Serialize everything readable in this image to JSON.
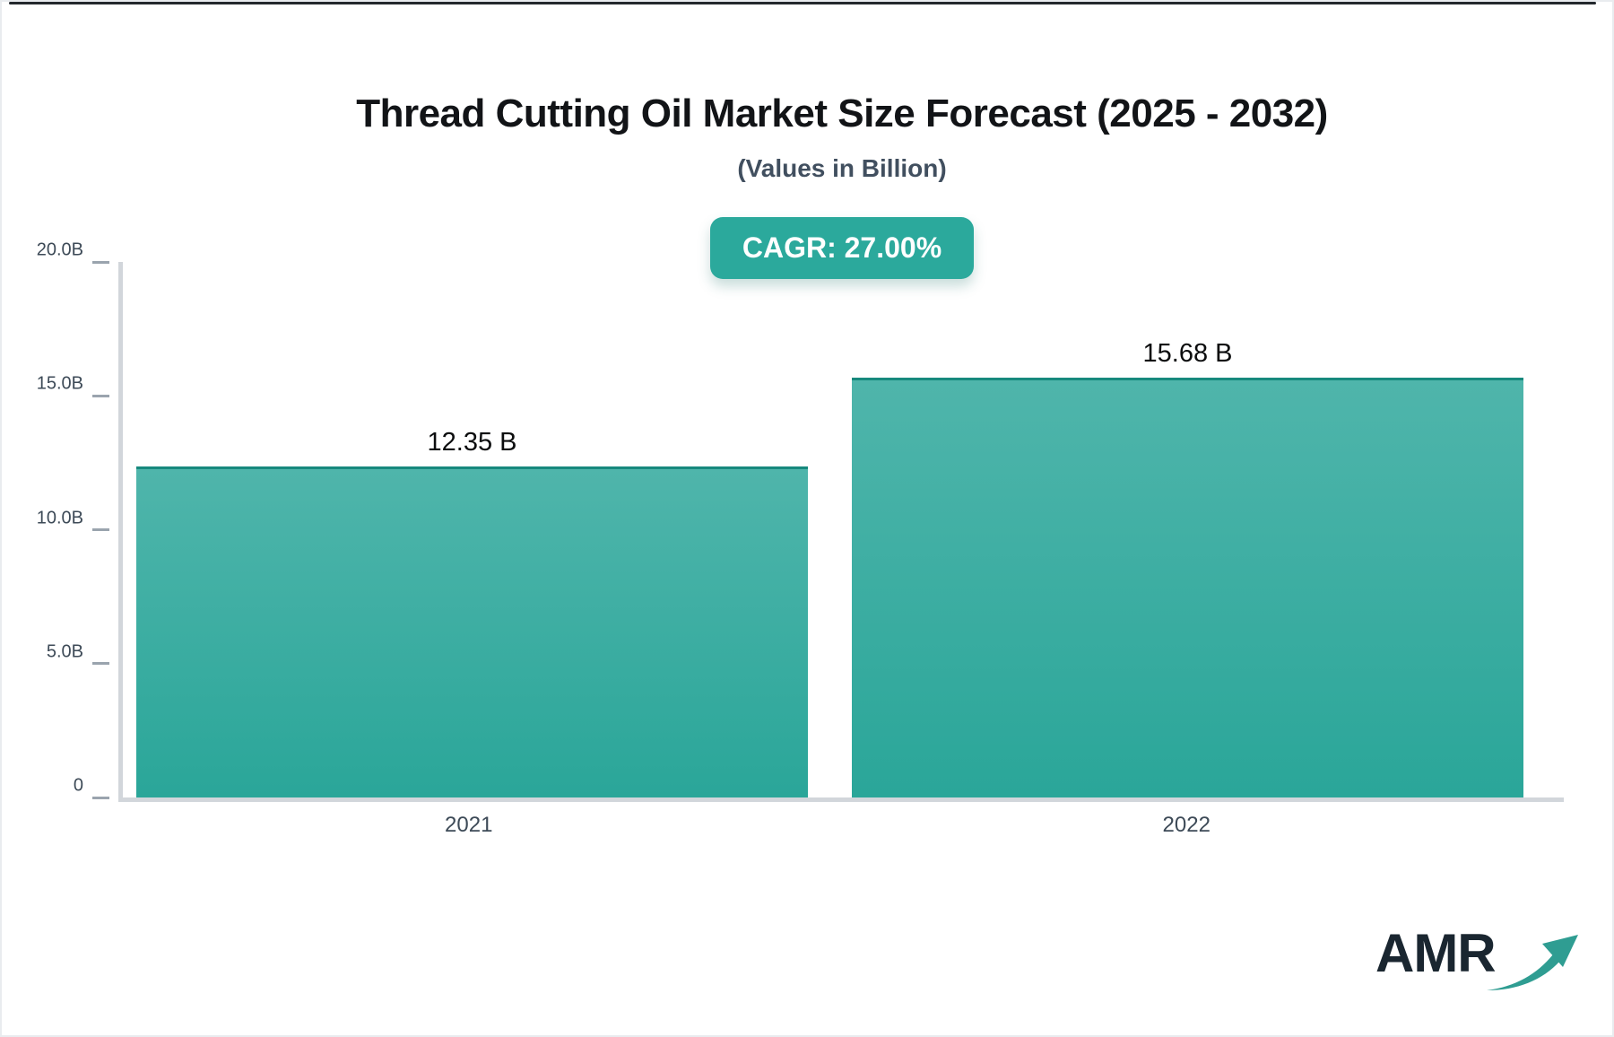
{
  "title": "Thread Cutting Oil Market Size Forecast (2025 - 2032)",
  "subtitle": "(Values in Billion)",
  "badge": {
    "label": "CAGR: 27.00%"
  },
  "logo": {
    "text": "AMR"
  },
  "colors": {
    "badge_bg": "#2ba99c",
    "bar_gradient_top": "#4fb5ab",
    "bar_gradient_bottom": "#2aa699",
    "bar_top_border": "#17897d",
    "axis_line": "#d2d6db",
    "tick": "#9aa4ae",
    "tick_label": "#3d4a57",
    "logo_arrow": "#2f9d92"
  },
  "chart_data": {
    "type": "bar",
    "categories": [
      "2021",
      "2022"
    ],
    "values": [
      12.35,
      15.68
    ],
    "value_labels": [
      "12.35 B",
      "15.68 B"
    ],
    "title": "Thread Cutting Oil Market Size Forecast (2025 - 2032)",
    "subtitle": "(Values in Billion)",
    "annotation": "CAGR: 27.00%",
    "xlabel": "",
    "ylabel": "",
    "ylim": [
      0,
      20
    ],
    "yticks": [
      {
        "value": 0,
        "label": "0"
      },
      {
        "value": 5,
        "label": "5.0B"
      },
      {
        "value": 10,
        "label": "10.0B"
      },
      {
        "value": 15,
        "label": "15.0B"
      },
      {
        "value": 20,
        "label": "20.0B"
      }
    ],
    "grid": false,
    "legend": false
  }
}
